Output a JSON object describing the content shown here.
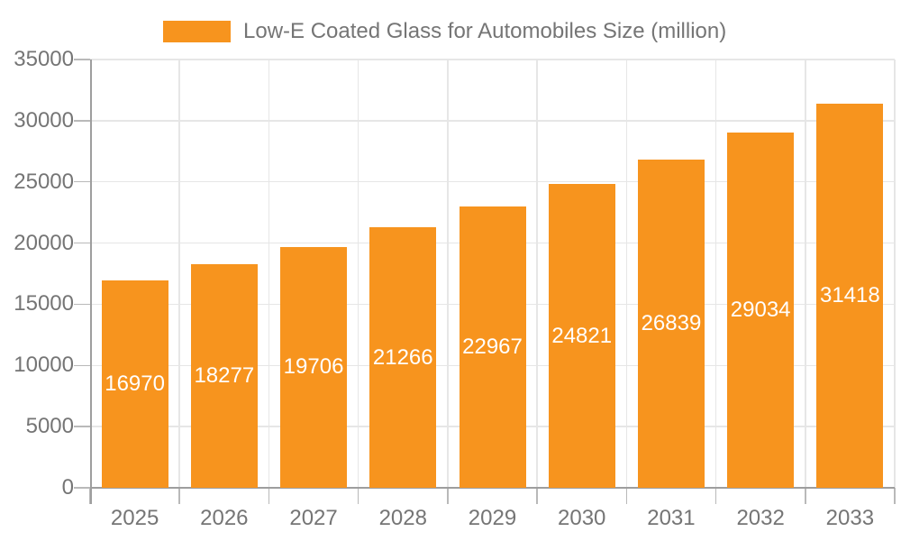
{
  "chart_data": {
    "type": "bar",
    "title": "Low-E Coated Glass for Automobiles Size (million)",
    "legend": {
      "position": "top",
      "label": "Low-E Coated Glass for Automobiles Size (million)"
    },
    "categories": [
      "2025",
      "2026",
      "2027",
      "2028",
      "2029",
      "2030",
      "2031",
      "2032",
      "2033"
    ],
    "series": [
      {
        "name": "Low-E Coated Glass for Automobiles Size (million)",
        "values": [
          16970,
          18277,
          19706,
          21266,
          22967,
          24821,
          26839,
          29034,
          31418
        ]
      }
    ],
    "value_labels_shown": true,
    "xlabel": "",
    "ylabel": "",
    "ylim": [
      0,
      35000
    ],
    "yticks": [
      0,
      5000,
      10000,
      15000,
      20000,
      25000,
      30000,
      35000
    ],
    "grid": true,
    "colors": {
      "bar": "#F7941E",
      "axis_text": "#757575",
      "value_text": "#FFFFFF",
      "gridline": "#E6E6E6",
      "axis_line": "#9E9E9E",
      "tick": "#B9B9B9",
      "background": "#FFFFFF"
    }
  }
}
